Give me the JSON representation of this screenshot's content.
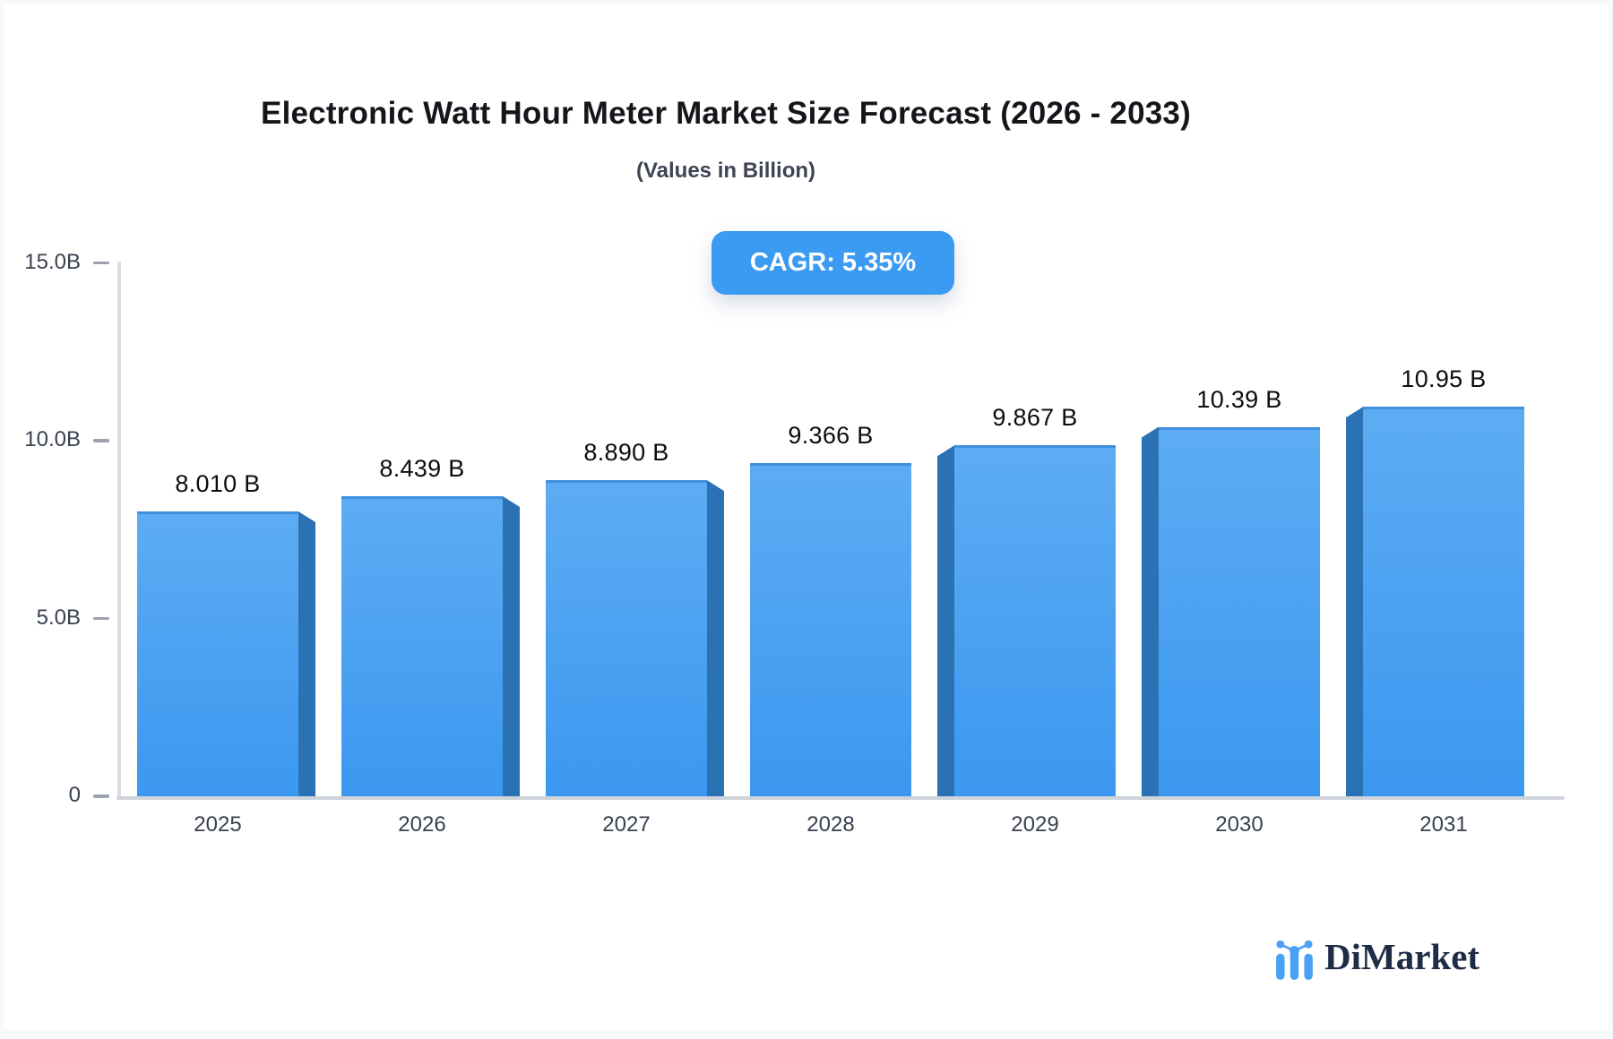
{
  "page": {
    "background_color": "#f6f8fa",
    "card_color": "#ffffff"
  },
  "header": {
    "title": "Electronic Watt Hour Meter Market Size Forecast (2026 - 2033)",
    "subtitle": "(Values in Billion)"
  },
  "badge": {
    "label": "CAGR: 5.35%",
    "background_color": "#3b9af1",
    "text_color": "#ffffff"
  },
  "chart_data": {
    "type": "bar",
    "title": "Electronic Watt Hour Meter Market Size Forecast (2026 - 2033)",
    "subtitle": "(Values in Billion)",
    "cagr": "5.35%",
    "categories": [
      "2025",
      "2026",
      "2027",
      "2028",
      "2029",
      "2030",
      "2031"
    ],
    "values": [
      8.01,
      8.439,
      8.89,
      9.366,
      9.867,
      10.39,
      10.95
    ],
    "value_labels": [
      "8.010 B",
      "8.439 B",
      "8.890 B",
      "9.366 B",
      "9.867 B",
      "10.39 B",
      "10.95 B"
    ],
    "unit": "Billion",
    "ylim": [
      0,
      15
    ],
    "yticks": [
      {
        "label": "15.0B",
        "value": 15
      },
      {
        "label": "10.0B",
        "value": 10
      },
      {
        "label": "5.0B",
        "value": 5
      },
      {
        "label": "0",
        "value": 0
      }
    ],
    "grid": false,
    "legend": "none",
    "style": {
      "bar_face_top_color": "#5dacf3",
      "bar_face_bottom_color": "#3b98f0",
      "bar_top_edge_color": "#3f8fdf",
      "bar_side_color": "#2b72b4",
      "axis_line_color": "#d8dce2",
      "baseline_color": "#cfd4db",
      "tick_dash_color": "#9ba2ad",
      "tick_label_color": "#39414f",
      "value_label_color": "#0b0d11"
    }
  },
  "logo": {
    "text": "DiMarket",
    "text_color": "#1e2c46",
    "icon": "bar-line-chart-icon",
    "icon_color": "#4aa0f5"
  }
}
